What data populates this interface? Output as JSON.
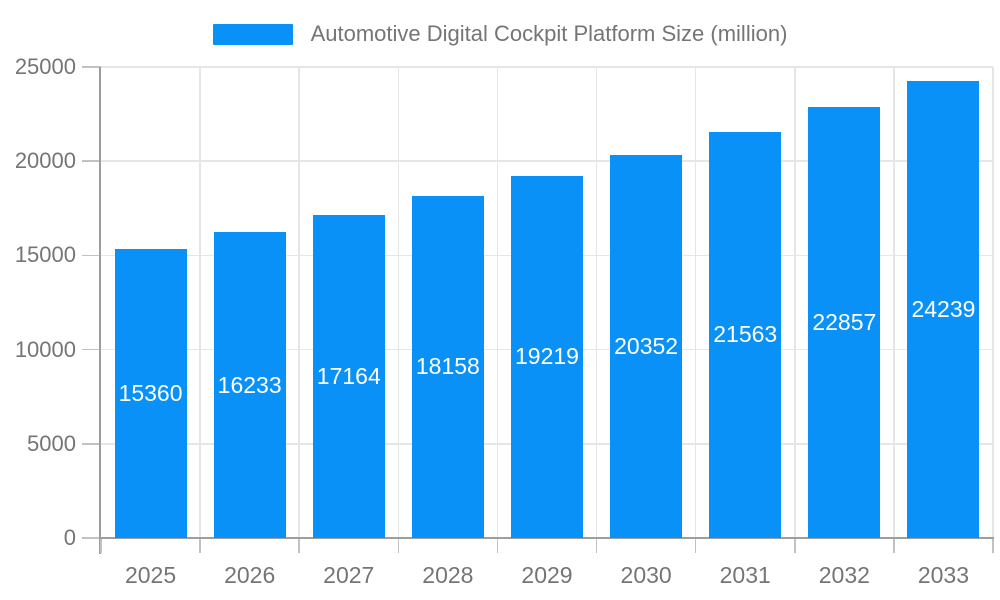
{
  "chart_data": {
    "type": "bar",
    "title": "Automotive Digital Cockpit Platform Size (million)",
    "legend": {
      "label": "Automotive Digital Cockpit Platform Size (million)",
      "position": "top-center"
    },
    "categories": [
      "2025",
      "2026",
      "2027",
      "2028",
      "2029",
      "2030",
      "2031",
      "2032",
      "2033"
    ],
    "values": [
      15360,
      16233,
      17164,
      18158,
      19219,
      20352,
      21563,
      22857,
      24239
    ],
    "xlabel": "",
    "ylabel": "",
    "ylim": [
      0,
      25000
    ],
    "yticks": [
      0,
      5000,
      10000,
      15000,
      20000,
      25000
    ],
    "grid": "horizontal-and-vertical",
    "value_labels": "inside-center",
    "colors": {
      "bar": "#0991f7",
      "grid": "#e6e6e6",
      "axis": "#9e9e9e",
      "tick": "#c2c2c2",
      "axis_text": "#757575",
      "value_text": "#ffffff",
      "background": "#ffffff"
    }
  }
}
